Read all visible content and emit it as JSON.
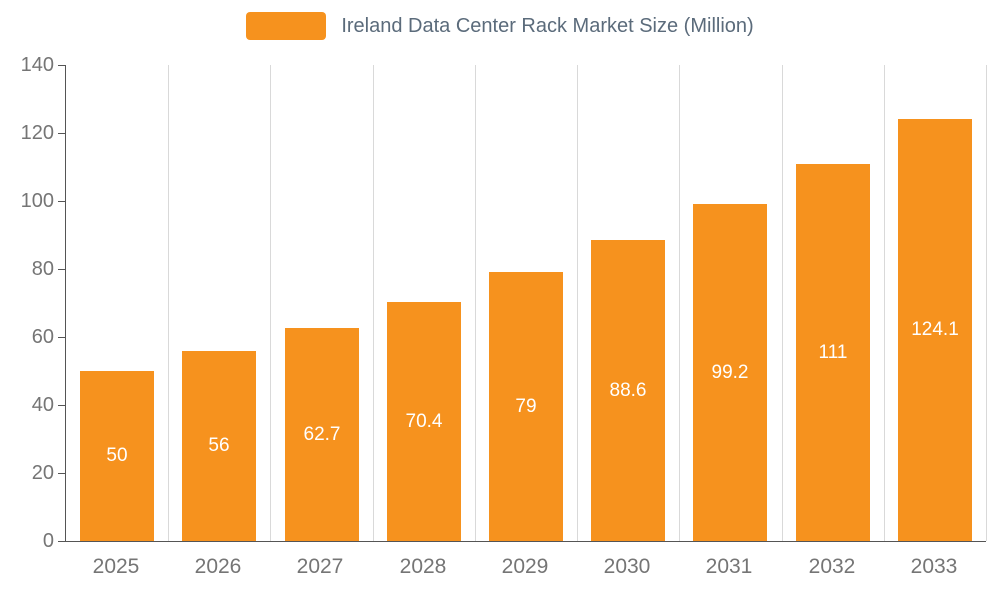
{
  "legend": {
    "label": "Ireland Data Center Rack Market  Size (Million)"
  },
  "colors": {
    "bar": "#f6921e",
    "legend_text": "#5b6b7b",
    "axis_text": "#757575",
    "gridline": "#d9d9d9",
    "axis_line": "#555555",
    "value_label": "#ffffff"
  },
  "chart_data": {
    "type": "bar",
    "title": "Ireland Data Center Rack Market  Size (Million)",
    "categories": [
      "2025",
      "2026",
      "2027",
      "2028",
      "2029",
      "2030",
      "2031",
      "2032",
      "2033"
    ],
    "values": [
      50,
      56,
      62.7,
      70.4,
      79,
      88.6,
      99.2,
      111,
      124.1
    ],
    "value_labels": [
      "50",
      "56",
      "62.7",
      "70.4",
      "79",
      "88.6",
      "99.2",
      "111",
      "124.1"
    ],
    "xlabel": "",
    "ylabel": "",
    "ylim": [
      0,
      140
    ],
    "yticks": [
      0,
      20,
      40,
      60,
      80,
      100,
      120,
      140
    ],
    "grid": "vertical",
    "legend_position": "top",
    "bar_label_position": "center-inside"
  }
}
